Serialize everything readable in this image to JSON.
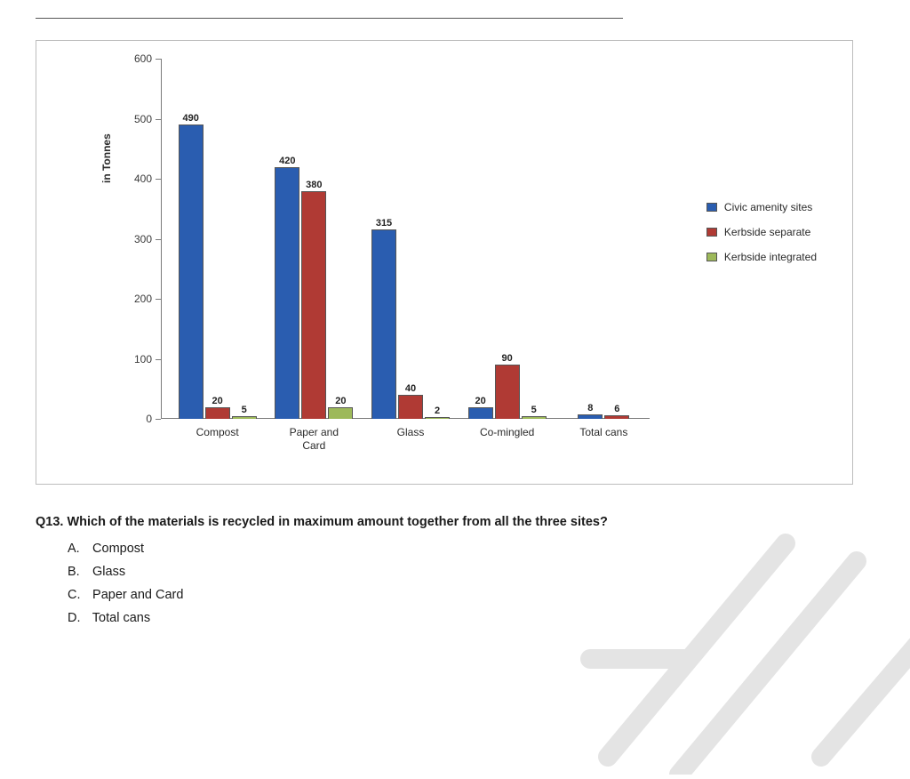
{
  "chart": {
    "type": "bar",
    "y_label": "in Tonnes",
    "y_ticks": [
      0,
      100,
      200,
      300,
      400,
      500,
      600
    ],
    "y_max": 600,
    "categories": [
      "Compost",
      "Paper and\nCard",
      "Glass",
      "Co-mingled",
      "Total cans"
    ],
    "series": [
      {
        "name": "Civic amenity sites",
        "color": "#2a5db0"
      },
      {
        "name": "Kerbside separate",
        "color": "#b03a34"
      },
      {
        "name": "Kerbside integrated",
        "color": "#9db95a"
      }
    ],
    "data": {
      "civic": [
        490,
        420,
        315,
        20,
        8
      ],
      "separate": [
        20,
        380,
        40,
        90,
        6
      ],
      "integrated": [
        5,
        20,
        2,
        5,
        null
      ]
    },
    "grid_color": "#cfcfcf",
    "axis_color": "#7a7a7a",
    "label_fontsize": 12,
    "data_label_fontsize": 11
  },
  "question": {
    "number": "Q13.",
    "text": "Which of the materials is recycled in maximum amount together from all the three sites?",
    "options": [
      {
        "letter": "A.",
        "text": "Compost"
      },
      {
        "letter": "B.",
        "text": "Glass"
      },
      {
        "letter": "C.",
        "text": "Paper and Card"
      },
      {
        "letter": "D.",
        "text": "Total cans"
      }
    ]
  }
}
